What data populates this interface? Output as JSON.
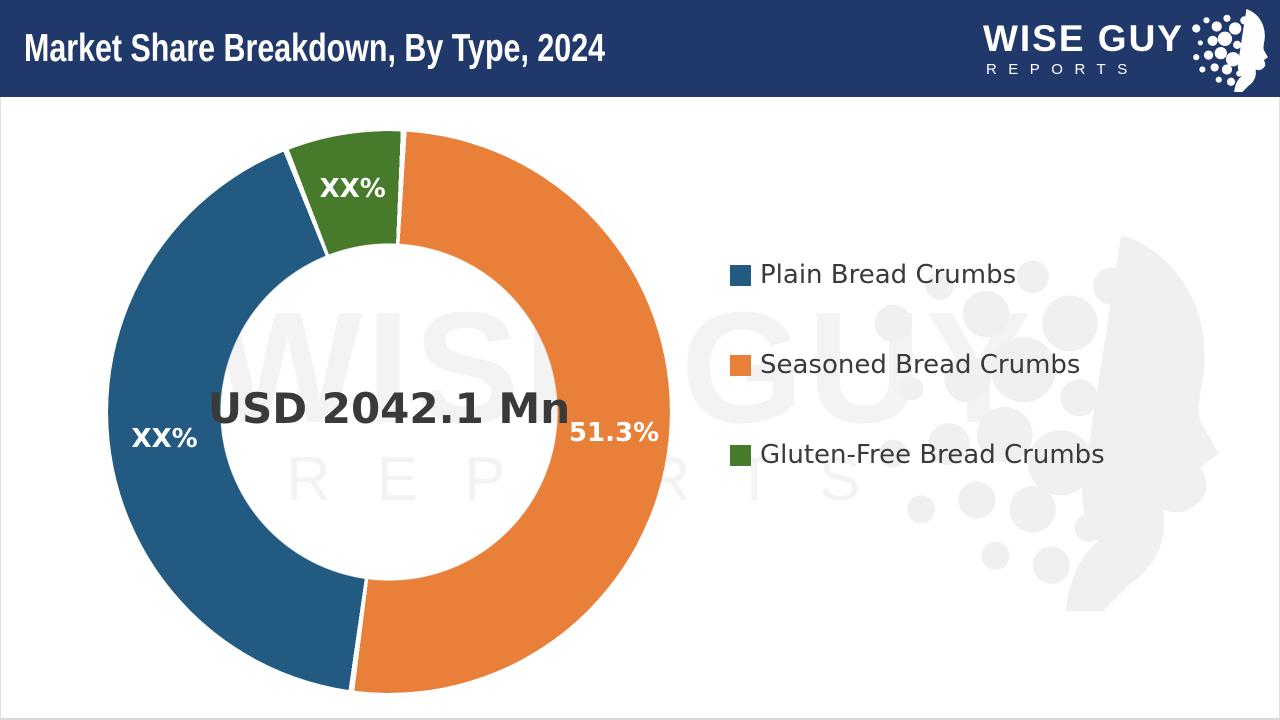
{
  "header": {
    "title": "Market Share Breakdown, By Type, 2024"
  },
  "brand": {
    "wordmark": "WISE GUY",
    "sub": "REPORTS"
  },
  "chart_data": {
    "type": "pie",
    "subtype": "donut",
    "title": "Market Share Breakdown, By Type, 2024",
    "center_label": "USD 2042.1 Mn",
    "start_angle_clockwise_from_top_deg": 3,
    "legend_position": "right",
    "segments": [
      {
        "name": "Seasoned Bread Crumbs",
        "display_label": "51.3%",
        "value_pct": 51.3,
        "color": "#E8803A"
      },
      {
        "name": "Plain Bread Crumbs",
        "display_label": "XX%",
        "value_pct": 41.9,
        "color": "#235A81"
      },
      {
        "name": "Gluten-Free Bread Crumbs",
        "display_label": "XX%",
        "value_pct": 6.8,
        "color": "#477A2B"
      }
    ]
  },
  "legend": {
    "items": [
      {
        "label": "Plain Bread Crumbs",
        "color": "#235A81"
      },
      {
        "label": "Seasoned Bread Crumbs",
        "color": "#E8803A"
      },
      {
        "label": "Gluten-Free Bread Crumbs",
        "color": "#477A2B"
      }
    ]
  }
}
